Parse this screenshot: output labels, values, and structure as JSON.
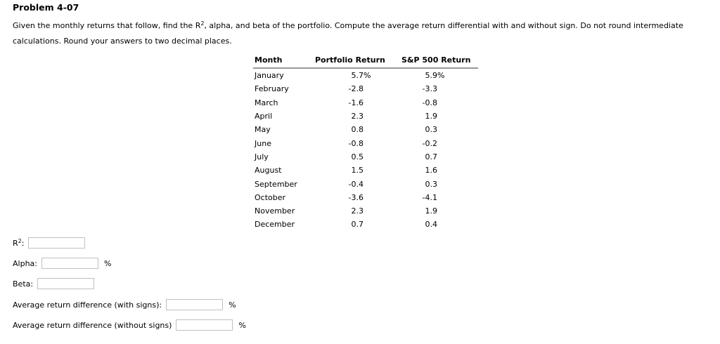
{
  "title": "Problem 4-07",
  "problem": {
    "text_before_sup": "Given the monthly returns that follow, find the R",
    "sup": "2",
    "text_after_sup": ", alpha, and beta of the portfolio. Compute the average return differential with and without sign. Do not round intermediate calculations. Round your answers to two decimal places."
  },
  "table": {
    "headers": [
      "Month",
      "Portfolio Return",
      "S&P 500 Return"
    ],
    "rows": [
      {
        "month": "January",
        "portfolio": "5.7",
        "portfolio_suffix": "%",
        "sp500": "5.9",
        "sp500_suffix": "%"
      },
      {
        "month": "February",
        "portfolio": "-2.8",
        "portfolio_suffix": "",
        "sp500": "-3.3",
        "sp500_suffix": ""
      },
      {
        "month": "March",
        "portfolio": "-1.6",
        "portfolio_suffix": "",
        "sp500": "-0.8",
        "sp500_suffix": ""
      },
      {
        "month": "April",
        "portfolio": "2.3",
        "portfolio_suffix": "",
        "sp500": "1.9",
        "sp500_suffix": ""
      },
      {
        "month": "May",
        "portfolio": "0.8",
        "portfolio_suffix": "",
        "sp500": "0.3",
        "sp500_suffix": ""
      },
      {
        "month": "June",
        "portfolio": "-0.8",
        "portfolio_suffix": "",
        "sp500": "-0.2",
        "sp500_suffix": ""
      },
      {
        "month": "July",
        "portfolio": "0.5",
        "portfolio_suffix": "",
        "sp500": "0.7",
        "sp500_suffix": ""
      },
      {
        "month": "August",
        "portfolio": "1.5",
        "portfolio_suffix": "",
        "sp500": "1.6",
        "sp500_suffix": ""
      },
      {
        "month": "September",
        "portfolio": "-0.4",
        "portfolio_suffix": "",
        "sp500": "0.3",
        "sp500_suffix": ""
      },
      {
        "month": "October",
        "portfolio": "-3.6",
        "portfolio_suffix": "",
        "sp500": "-4.1",
        "sp500_suffix": ""
      },
      {
        "month": "November",
        "portfolio": "2.3",
        "portfolio_suffix": "",
        "sp500": "1.9",
        "sp500_suffix": ""
      },
      {
        "month": "December",
        "portfolio": "0.7",
        "portfolio_suffix": "",
        "sp500": "0.4",
        "sp500_suffix": ""
      }
    ]
  },
  "answers": {
    "r2": {
      "label_base": "R",
      "label_sup": "2",
      "label_colon": ":",
      "value": "",
      "placeholder": ""
    },
    "alpha": {
      "label": "Alpha:",
      "value": "",
      "placeholder": "",
      "pct": "%"
    },
    "beta": {
      "label": "Beta:",
      "value": "",
      "placeholder": ""
    },
    "avg_with_signs": {
      "label": "Average return difference (with signs):",
      "value": "",
      "placeholder": "",
      "pct": "%"
    },
    "avg_without_signs": {
      "label": "Average return difference (without signs)",
      "value": "",
      "placeholder": "",
      "pct": "%"
    }
  },
  "colors": {
    "header_rule": "#999999",
    "input_border": "#c0c0c0",
    "text": "#000000",
    "background": "#ffffff"
  }
}
